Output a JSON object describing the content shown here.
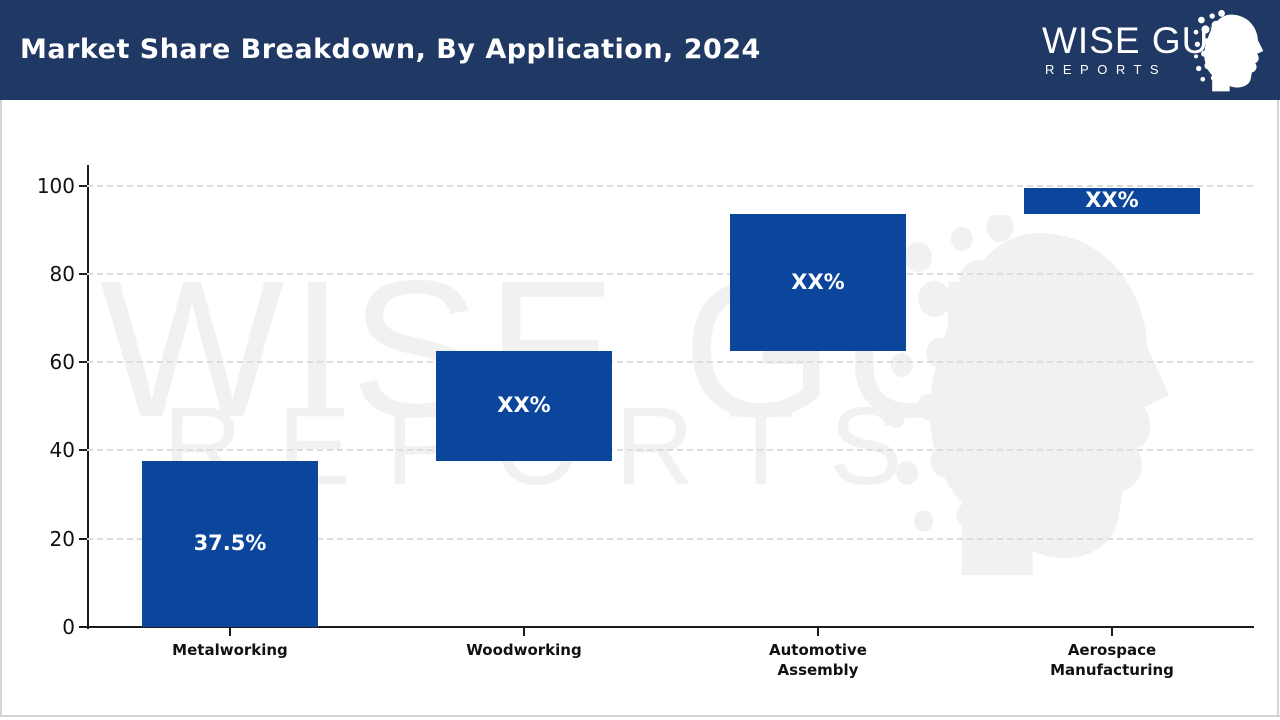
{
  "header": {
    "title": "Market Share Breakdown, By Application, 2024"
  },
  "logo": {
    "line1": "WISE GUY",
    "line2": "REPORTS"
  },
  "watermark": {
    "line1": "WISE GUY",
    "line2": "REPORTS"
  },
  "colors": {
    "header_bg": "#1f3864",
    "bar": "#0c459c",
    "bar_label": "#ffffff",
    "axis": "#1c1c1c",
    "grid": "#dcdcdc",
    "frame": "#d4d4d4",
    "watermark": "#f1f1f1",
    "title_text": "#ffffff",
    "tick_text": "#111111"
  },
  "chart_data": {
    "type": "bar",
    "subtype": "waterfall",
    "title": "Market Share Breakdown, By Application, 2024",
    "categories": [
      "Metalworking",
      "Woodworking",
      "Automotive\nAssembly",
      "Aerospace\nManufacturing"
    ],
    "segments": [
      {
        "category": "Metalworking",
        "start": 0,
        "end": 37.5,
        "label": "37.5%"
      },
      {
        "category": "Woodworking",
        "start": 37.5,
        "end": 62.5,
        "label": "XX%"
      },
      {
        "category": "Automotive Assembly",
        "start": 62.5,
        "end": 93.5,
        "label": "XX%"
      },
      {
        "category": "Aerospace Manufacturing",
        "start": 93.5,
        "end": 99.5,
        "label": "XX%"
      }
    ],
    "yticks": [
      0,
      20,
      40,
      60,
      80,
      100
    ],
    "ylim": [
      0,
      104
    ],
    "xlabel": "",
    "ylabel": "",
    "grid": "horizontal-dashed",
    "legend": "none"
  }
}
